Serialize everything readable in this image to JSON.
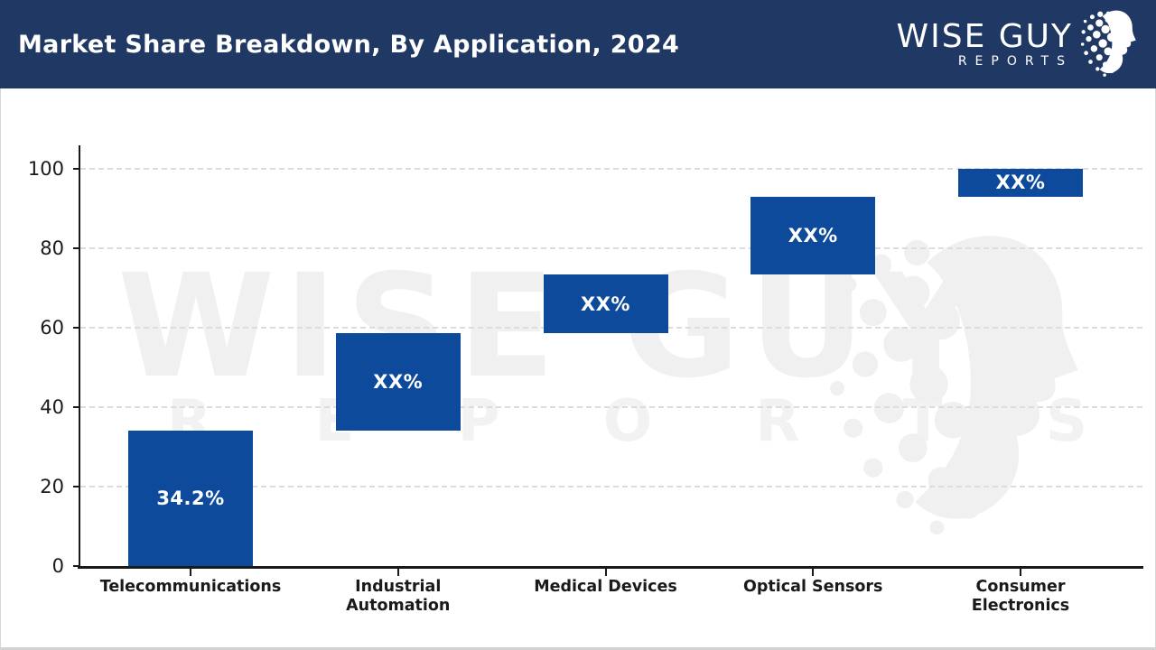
{
  "header": {
    "title": "Market Share Breakdown, By Application, 2024",
    "bg_color": "#203864",
    "logo": {
      "line1": "WISE GUY",
      "line2": "REPORTS"
    }
  },
  "watermark": {
    "line1": "WISE GUY",
    "line2": "R E P O R T S"
  },
  "chart_data": {
    "type": "bar",
    "subtype": "waterfall",
    "title": "Market Share Breakdown, By Application, 2024",
    "categories": [
      "Telecommunications",
      "Industrial Automation",
      "Medical Devices",
      "Optical Sensors",
      "Consumer Electronics"
    ],
    "category_lines": [
      [
        "Telecommunications"
      ],
      [
        "Industrial",
        "Automation"
      ],
      [
        "Medical Devices"
      ],
      [
        "Optical Sensors"
      ],
      [
        "Consumer",
        "Electronics"
      ]
    ],
    "segments": [
      {
        "category": "Telecommunications",
        "start": 0,
        "end": 34.2,
        "label": "34.2%"
      },
      {
        "category": "Industrial Automation",
        "start": 34.2,
        "end": 58.6,
        "label": "XX%"
      },
      {
        "category": "Medical Devices",
        "start": 58.6,
        "end": 73.4,
        "label": "XX%"
      },
      {
        "category": "Optical Sensors",
        "start": 73.4,
        "end": 93.0,
        "label": "XX%"
      },
      {
        "category": "Consumer Electronics",
        "start": 93.0,
        "end": 100.0,
        "label": "XX%"
      }
    ],
    "ylim": [
      0,
      100
    ],
    "yticks": [
      0,
      20,
      40,
      60,
      80,
      100
    ],
    "xlabel": "",
    "ylabel": "",
    "grid": "horizontal-dashed",
    "legend": "none",
    "bar_color": "#0d4a9b",
    "bar_label_color": "#ffffff",
    "axis_color": "#1a1a1a"
  }
}
